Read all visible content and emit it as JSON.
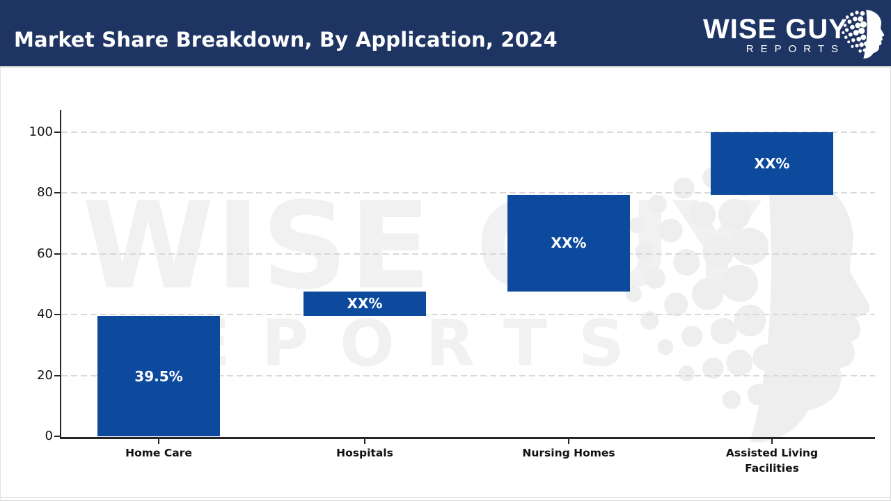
{
  "header": {
    "title": "Market Share Breakdown, By Application, 2024",
    "brand": {
      "name": "WISE GUY",
      "subtitle": "REPORTS"
    }
  },
  "watermark": {
    "line1": "WISE GUY",
    "line2": "REPORTS"
  },
  "chart_data": {
    "type": "bar",
    "subtype": "waterfall",
    "title": "Market Share Breakdown, By Application, 2024",
    "categories": [
      "Home Care",
      "Hospitals",
      "Nursing Homes",
      "Assisted Living Facilities"
    ],
    "segments": [
      {
        "category": "Home Care",
        "start": 0,
        "end": 39.5,
        "value": "39.5",
        "label": "39.5%"
      },
      {
        "category": "Hospitals",
        "start": 39.5,
        "end": 47.6,
        "value": "XX",
        "label": "XX%"
      },
      {
        "category": "Nursing Homes",
        "start": 47.6,
        "end": 79.4,
        "value": "XX",
        "label": "XX%"
      },
      {
        "category": "Assisted Living Facilities",
        "start": 79.4,
        "end": 100,
        "value": "XX",
        "label": "XX%"
      }
    ],
    "xlabel": "",
    "ylabel": "",
    "ylim": [
      0,
      100
    ],
    "yticks": [
      0,
      20,
      40,
      60,
      80,
      100
    ],
    "grid": "horizontal, dashed",
    "legend": "none",
    "colors": {
      "bar": "#0d4a9d",
      "bar_label": "#ffffff",
      "header_background": "#1e3563",
      "grid": "#d8d8d8",
      "axis": "#262626"
    }
  }
}
